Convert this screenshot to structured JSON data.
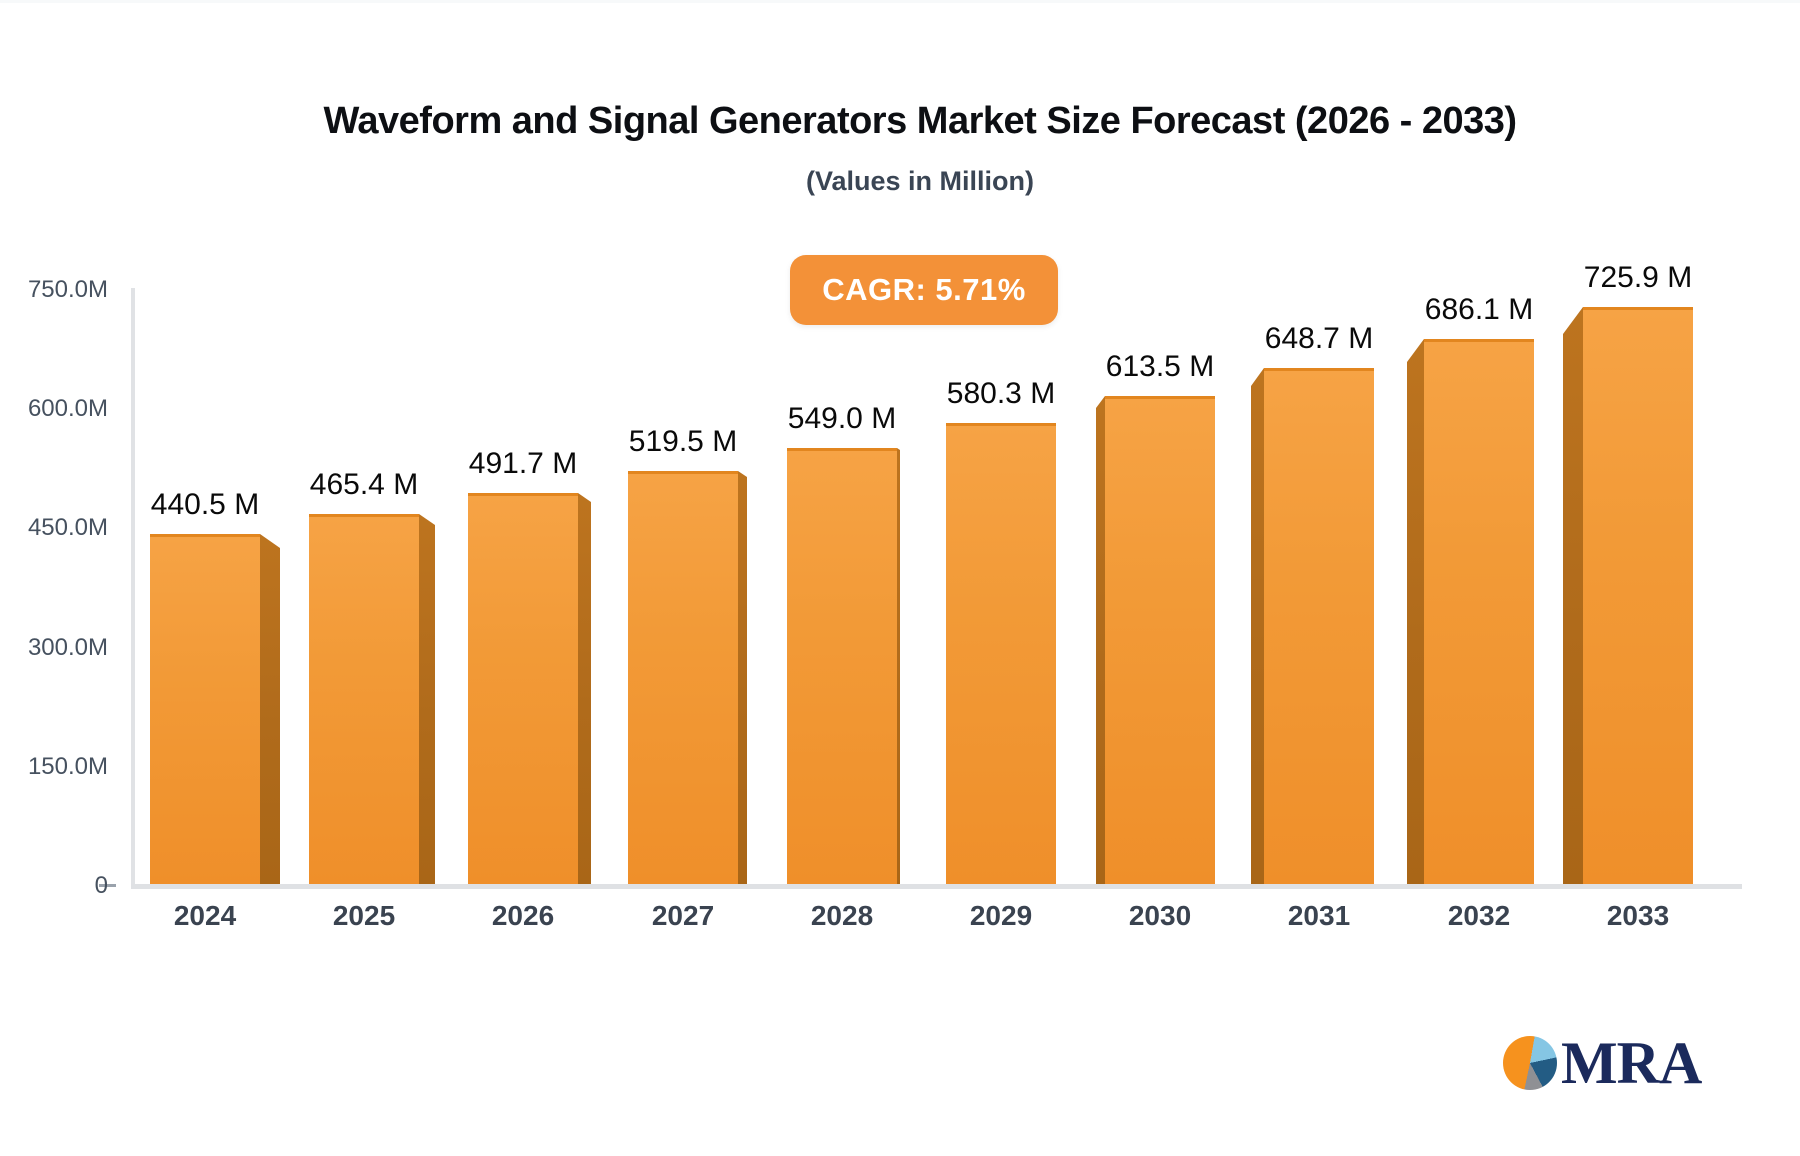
{
  "header": {
    "title": "Waveform and Signal Generators Market Size Forecast (2026 - 2033)",
    "subtitle": "(Values in Million)"
  },
  "badge": {
    "label": "CAGR: 5.71%",
    "background_color": "#f39138",
    "text_color": "#ffffff"
  },
  "chart_data": {
    "type": "bar",
    "title": "Waveform and Signal Generators Market Size Forecast (2026 - 2033)",
    "subtitle": "(Values in Million)",
    "cagr": "5.71%",
    "categories": [
      "2024",
      "2025",
      "2026",
      "2027",
      "2028",
      "2029",
      "2030",
      "2031",
      "2032",
      "2033"
    ],
    "values": [
      440.5,
      465.4,
      491.7,
      519.5,
      549.0,
      580.3,
      613.5,
      648.7,
      686.1,
      725.9
    ],
    "value_labels": [
      "440.5 M",
      "465.4 M",
      "491.7 M",
      "519.5 M",
      "549.0 M",
      "580.3 M",
      "613.5 M",
      "648.7 M",
      "686.1 M",
      "725.9 M"
    ],
    "ylim": [
      0,
      750
    ],
    "y_ticks": [
      {
        "label": "750.0M",
        "value": 750
      },
      {
        "label": "600.0M",
        "value": 600
      },
      {
        "label": "450.0M",
        "value": 450
      },
      {
        "label": "300.0M",
        "value": 300
      },
      {
        "label": "150.0M",
        "value": 150
      },
      {
        "label": "0",
        "value": 0
      }
    ],
    "grid": false,
    "legend_position": "none",
    "bar_color": "#f2932e",
    "bar_side_color": "#b06b1b",
    "style": "pseudo-3d bars, side facets point toward center vanishing point"
  },
  "logo": {
    "text": "MRA",
    "text_color": "#1b2a5c",
    "pie_colors": {
      "orange": "#f6921e",
      "light_blue": "#85c6e4",
      "navy": "#235c84",
      "gray": "#8f9094"
    }
  }
}
